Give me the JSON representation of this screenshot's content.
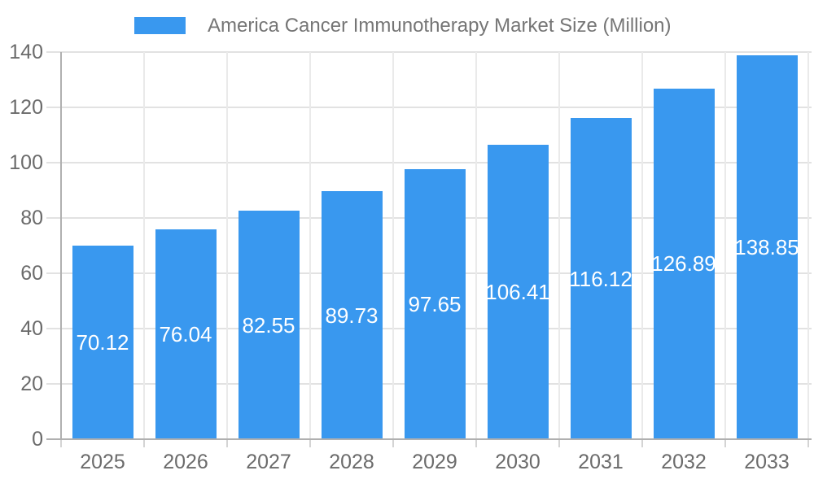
{
  "chart_data": {
    "type": "bar",
    "title": "America Cancer Immunotherapy Market Size (Million)",
    "legend": {
      "position": "top",
      "entries": [
        "America Cancer Immunotherapy Market Size (Million)"
      ]
    },
    "categories": [
      "2025",
      "2026",
      "2027",
      "2028",
      "2029",
      "2030",
      "2031",
      "2032",
      "2033"
    ],
    "series": [
      {
        "name": "America Cancer Immunotherapy Market Size (Million)",
        "values": [
          70.12,
          76.04,
          82.55,
          89.73,
          97.65,
          106.41,
          116.12,
          126.89,
          138.85
        ],
        "value_labels": [
          "70.12",
          "76.04",
          "82.55",
          "89.73",
          "97.65",
          "106.41",
          "116.12",
          "126.89",
          "138.85"
        ]
      }
    ],
    "xlabel": "",
    "ylabel": "",
    "ylim": [
      0,
      140
    ],
    "ytick_interval": 20,
    "ytick_labels": [
      "0",
      "20",
      "40",
      "60",
      "80",
      "100",
      "120",
      "140"
    ],
    "grid": "horizontal gridlines plus vertical category separators",
    "colors": {
      "bar": "#3998ef",
      "value_label": "#ffffff",
      "title_text": "#757575",
      "axis_text": "#6b6b6b",
      "axis_line": "#b0b0b0",
      "gridline": "#e2e2e2",
      "category_separator": "#eaeaea",
      "x_tick": "#d4d4d4",
      "background": "#ffffff"
    }
  }
}
